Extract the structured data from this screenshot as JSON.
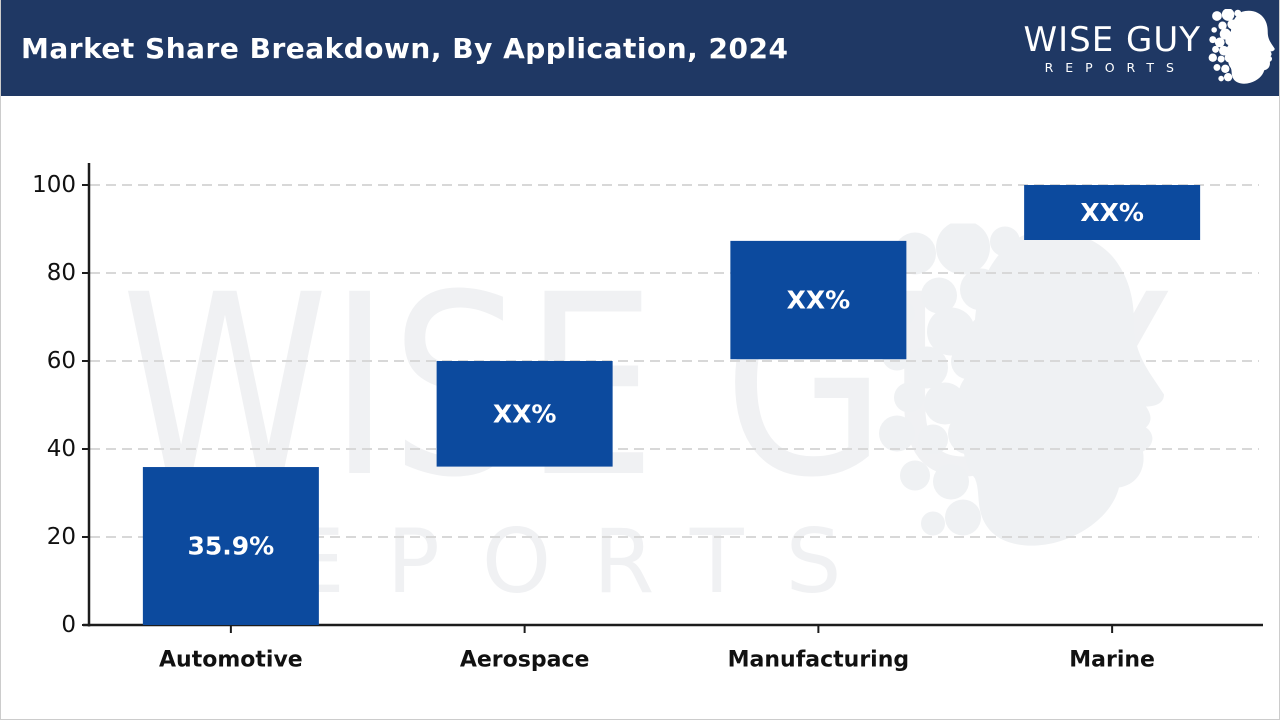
{
  "header": {
    "title": "Market Share Breakdown, By Application, 2024",
    "logo_line1": "WISE GUY",
    "logo_line2": "REPORTS"
  },
  "watermark": {
    "line1": "WISE GUY",
    "line2": "REPORTS"
  },
  "colors": {
    "header_bg": "#1f3864",
    "bar": "#0c4a9e",
    "grid": "#d8d8d8",
    "axis": "#1c1c1c",
    "tick_text": "#111111",
    "bar_label_text": "#ffffff",
    "watermark": "#f0f1f3"
  },
  "chart_data": {
    "type": "bar",
    "subtype": "waterfall",
    "title": "Market Share Breakdown, By Application, 2024",
    "categories": [
      "Automotive",
      "Aerospace",
      "Manufacturing",
      "Marine"
    ],
    "segments": [
      {
        "category": "Automotive",
        "start": 0,
        "end": 35.9,
        "label": "35.9%"
      },
      {
        "category": "Aerospace",
        "start": 36,
        "end": 60,
        "label": "XX%"
      },
      {
        "category": "Manufacturing",
        "start": 60.4,
        "end": 87.3,
        "label": "XX%"
      },
      {
        "category": "Marine",
        "start": 87.5,
        "end": 100,
        "label": "XX%"
      }
    ],
    "yticks": [
      0,
      20,
      40,
      60,
      80,
      100
    ],
    "ylim": [
      0,
      105
    ],
    "xlabel": "",
    "ylabel": "",
    "grid": "dashed-horizontal",
    "legend": "none",
    "bar_color": "#0c4a9e"
  }
}
